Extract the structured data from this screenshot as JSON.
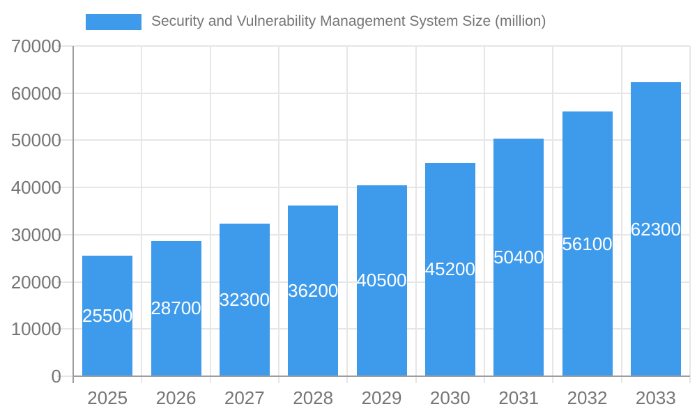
{
  "legend": {
    "label": "Security and Vulnerability Management System Size (million)"
  },
  "chart_data": {
    "type": "bar",
    "title": "Security and Vulnerability Management System Size (million)",
    "categories": [
      "2025",
      "2026",
      "2027",
      "2028",
      "2029",
      "2030",
      "2031",
      "2032",
      "2033"
    ],
    "values": [
      25500,
      28700,
      32300,
      36200,
      40500,
      45200,
      50400,
      56100,
      62300
    ],
    "xlabel": "",
    "ylabel": "",
    "ylim": [
      0,
      70000
    ],
    "yticks": [
      0,
      10000,
      20000,
      30000,
      40000,
      50000,
      60000,
      70000
    ],
    "grid": true,
    "legend_position": "top-left",
    "value_labels": "inside-center",
    "colors": {
      "bar": "#3E9AEB",
      "value_label": "#FFFFFF",
      "axis_text": "#757575",
      "grid_line": "#E6E6E6",
      "axis_line": "#9E9E9E",
      "background": "#FFFFFF"
    }
  }
}
